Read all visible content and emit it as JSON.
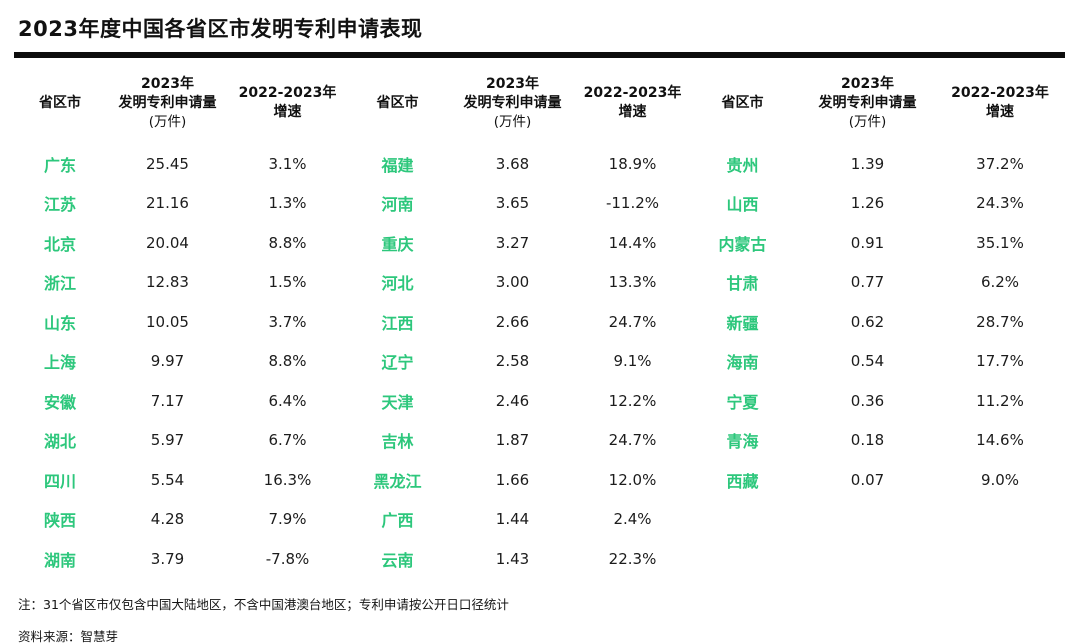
{
  "title": "2023年度中国各省区市发明专利申请表现",
  "colors": {
    "province_green": "#2dc77c",
    "text_dark": "#1c1c1c",
    "rule_black": "#0d0d0d"
  },
  "table": {
    "headers": {
      "province": "省区市",
      "value_line1": "2023年",
      "value_line2": "发明专利申请量",
      "value_line3": "(万件)",
      "growth_line1": "2022-2023年",
      "growth_line2": "增速"
    },
    "groups": [
      {
        "rows": [
          {
            "province": "广东",
            "value": "25.45",
            "growth": "3.1%"
          },
          {
            "province": "江苏",
            "value": "21.16",
            "growth": "1.3%"
          },
          {
            "province": "北京",
            "value": "20.04",
            "growth": "8.8%"
          },
          {
            "province": "浙江",
            "value": "12.83",
            "growth": "1.5%"
          },
          {
            "province": "山东",
            "value": "10.05",
            "growth": "3.7%"
          },
          {
            "province": "上海",
            "value": "9.97",
            "growth": "8.8%"
          },
          {
            "province": "安徽",
            "value": "7.17",
            "growth": "6.4%"
          },
          {
            "province": "湖北",
            "value": "5.97",
            "growth": "6.7%"
          },
          {
            "province": "四川",
            "value": "5.54",
            "growth": "16.3%"
          },
          {
            "province": "陕西",
            "value": "4.28",
            "growth": "7.9%"
          },
          {
            "province": "湖南",
            "value": "3.79",
            "growth": "-7.8%"
          }
        ]
      },
      {
        "rows": [
          {
            "province": "福建",
            "value": "3.68",
            "growth": "18.9%"
          },
          {
            "province": "河南",
            "value": "3.65",
            "growth": "-11.2%"
          },
          {
            "province": "重庆",
            "value": "3.27",
            "growth": "14.4%"
          },
          {
            "province": "河北",
            "value": "3.00",
            "growth": "13.3%"
          },
          {
            "province": "江西",
            "value": "2.66",
            "growth": "24.7%"
          },
          {
            "province": "辽宁",
            "value": "2.58",
            "growth": "9.1%"
          },
          {
            "province": "天津",
            "value": "2.46",
            "growth": "12.2%"
          },
          {
            "province": "吉林",
            "value": "1.87",
            "growth": "24.7%"
          },
          {
            "province": "黑龙江",
            "value": "1.66",
            "growth": "12.0%"
          },
          {
            "province": "广西",
            "value": "1.44",
            "growth": "2.4%"
          },
          {
            "province": "云南",
            "value": "1.43",
            "growth": "22.3%"
          }
        ]
      },
      {
        "rows": [
          {
            "province": "贵州",
            "value": "1.39",
            "growth": "37.2%"
          },
          {
            "province": "山西",
            "value": "1.26",
            "growth": "24.3%"
          },
          {
            "province": "内蒙古",
            "value": "0.91",
            "growth": "35.1%"
          },
          {
            "province": "甘肃",
            "value": "0.77",
            "growth": "6.2%"
          },
          {
            "province": "新疆",
            "value": "0.62",
            "growth": "28.7%"
          },
          {
            "province": "海南",
            "value": "0.54",
            "growth": "17.7%"
          },
          {
            "province": "宁夏",
            "value": "0.36",
            "growth": "11.2%"
          },
          {
            "province": "青海",
            "value": "0.18",
            "growth": "14.6%"
          },
          {
            "province": "西藏",
            "value": "0.07",
            "growth": "9.0%"
          }
        ]
      }
    ]
  },
  "notes": {
    "note1": "注：31个省区市仅包含中国大陆地区，不含中国港澳台地区；专利申请按公开日口径统计",
    "source": "资料来源：智慧芽"
  },
  "chart_data": {
    "type": "table",
    "title": "2023年度中国各省区市发明专利申请表现",
    "columns": [
      "省区市",
      "2023年发明专利申请量(万件)",
      "2022-2023年增速"
    ],
    "rows": [
      [
        "广东",
        25.45,
        "3.1%"
      ],
      [
        "江苏",
        21.16,
        "1.3%"
      ],
      [
        "北京",
        20.04,
        "8.8%"
      ],
      [
        "浙江",
        12.83,
        "1.5%"
      ],
      [
        "山东",
        10.05,
        "3.7%"
      ],
      [
        "上海",
        9.97,
        "8.8%"
      ],
      [
        "安徽",
        7.17,
        "6.4%"
      ],
      [
        "湖北",
        5.97,
        "6.7%"
      ],
      [
        "四川",
        5.54,
        "16.3%"
      ],
      [
        "陕西",
        4.28,
        "7.9%"
      ],
      [
        "湖南",
        3.79,
        "-7.8%"
      ],
      [
        "福建",
        3.68,
        "18.9%"
      ],
      [
        "河南",
        3.65,
        "-11.2%"
      ],
      [
        "重庆",
        3.27,
        "14.4%"
      ],
      [
        "河北",
        3.0,
        "13.3%"
      ],
      [
        "江西",
        2.66,
        "24.7%"
      ],
      [
        "辽宁",
        2.58,
        "9.1%"
      ],
      [
        "天津",
        2.46,
        "12.2%"
      ],
      [
        "吉林",
        1.87,
        "24.7%"
      ],
      [
        "黑龙江",
        1.66,
        "12.0%"
      ],
      [
        "广西",
        1.44,
        "2.4%"
      ],
      [
        "云南",
        1.43,
        "22.3%"
      ],
      [
        "贵州",
        1.39,
        "37.2%"
      ],
      [
        "山西",
        1.26,
        "24.3%"
      ],
      [
        "内蒙古",
        0.91,
        "35.1%"
      ],
      [
        "甘肃",
        0.77,
        "6.2%"
      ],
      [
        "新疆",
        0.62,
        "28.7%"
      ],
      [
        "海南",
        0.54,
        "17.7%"
      ],
      [
        "宁夏",
        0.36,
        "11.2%"
      ],
      [
        "青海",
        0.18,
        "14.6%"
      ],
      [
        "西藏",
        0.07,
        "9.0%"
      ]
    ]
  }
}
